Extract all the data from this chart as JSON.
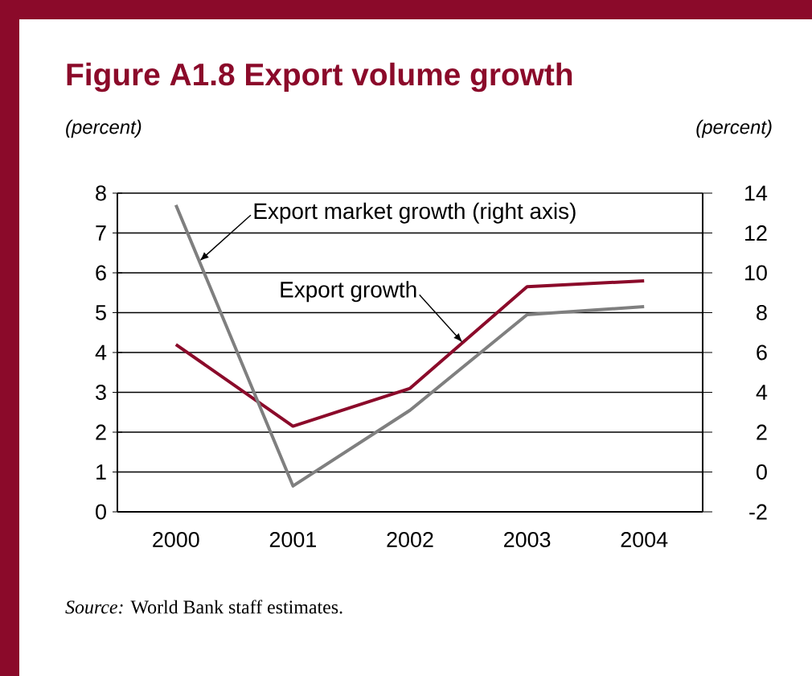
{
  "chart_data": {
    "type": "line",
    "title": "Figure A1.8  Export volume growth",
    "ylabel": "(percent)",
    "y2label": "(percent)",
    "categories": [
      "2000",
      "2001",
      "2002",
      "2003",
      "2004"
    ],
    "series": [
      {
        "name": "Export growth",
        "color": "#8b0a2a",
        "values": [
          4.2,
          2.15,
          3.1,
          5.65,
          5.8
        ]
      },
      {
        "name": "Export market growth (right axis)",
        "color": "#7f7f7f",
        "axis": "y2",
        "values": [
          13.4,
          -0.7,
          3.1,
          7.9,
          8.3
        ]
      }
    ],
    "ylim": [
      0,
      8
    ],
    "yticks": [
      0,
      1,
      2,
      3,
      4,
      5,
      6,
      7,
      8
    ],
    "y2lim": [
      -2,
      14
    ],
    "y2ticks": [
      -2,
      0,
      2,
      4,
      6,
      8,
      10,
      12,
      14
    ],
    "grid": "y",
    "legend": false,
    "marker": "none",
    "line_style": "solid",
    "annotations": [
      "*Source:* World Bank staff estimates."
    ]
  }
}
